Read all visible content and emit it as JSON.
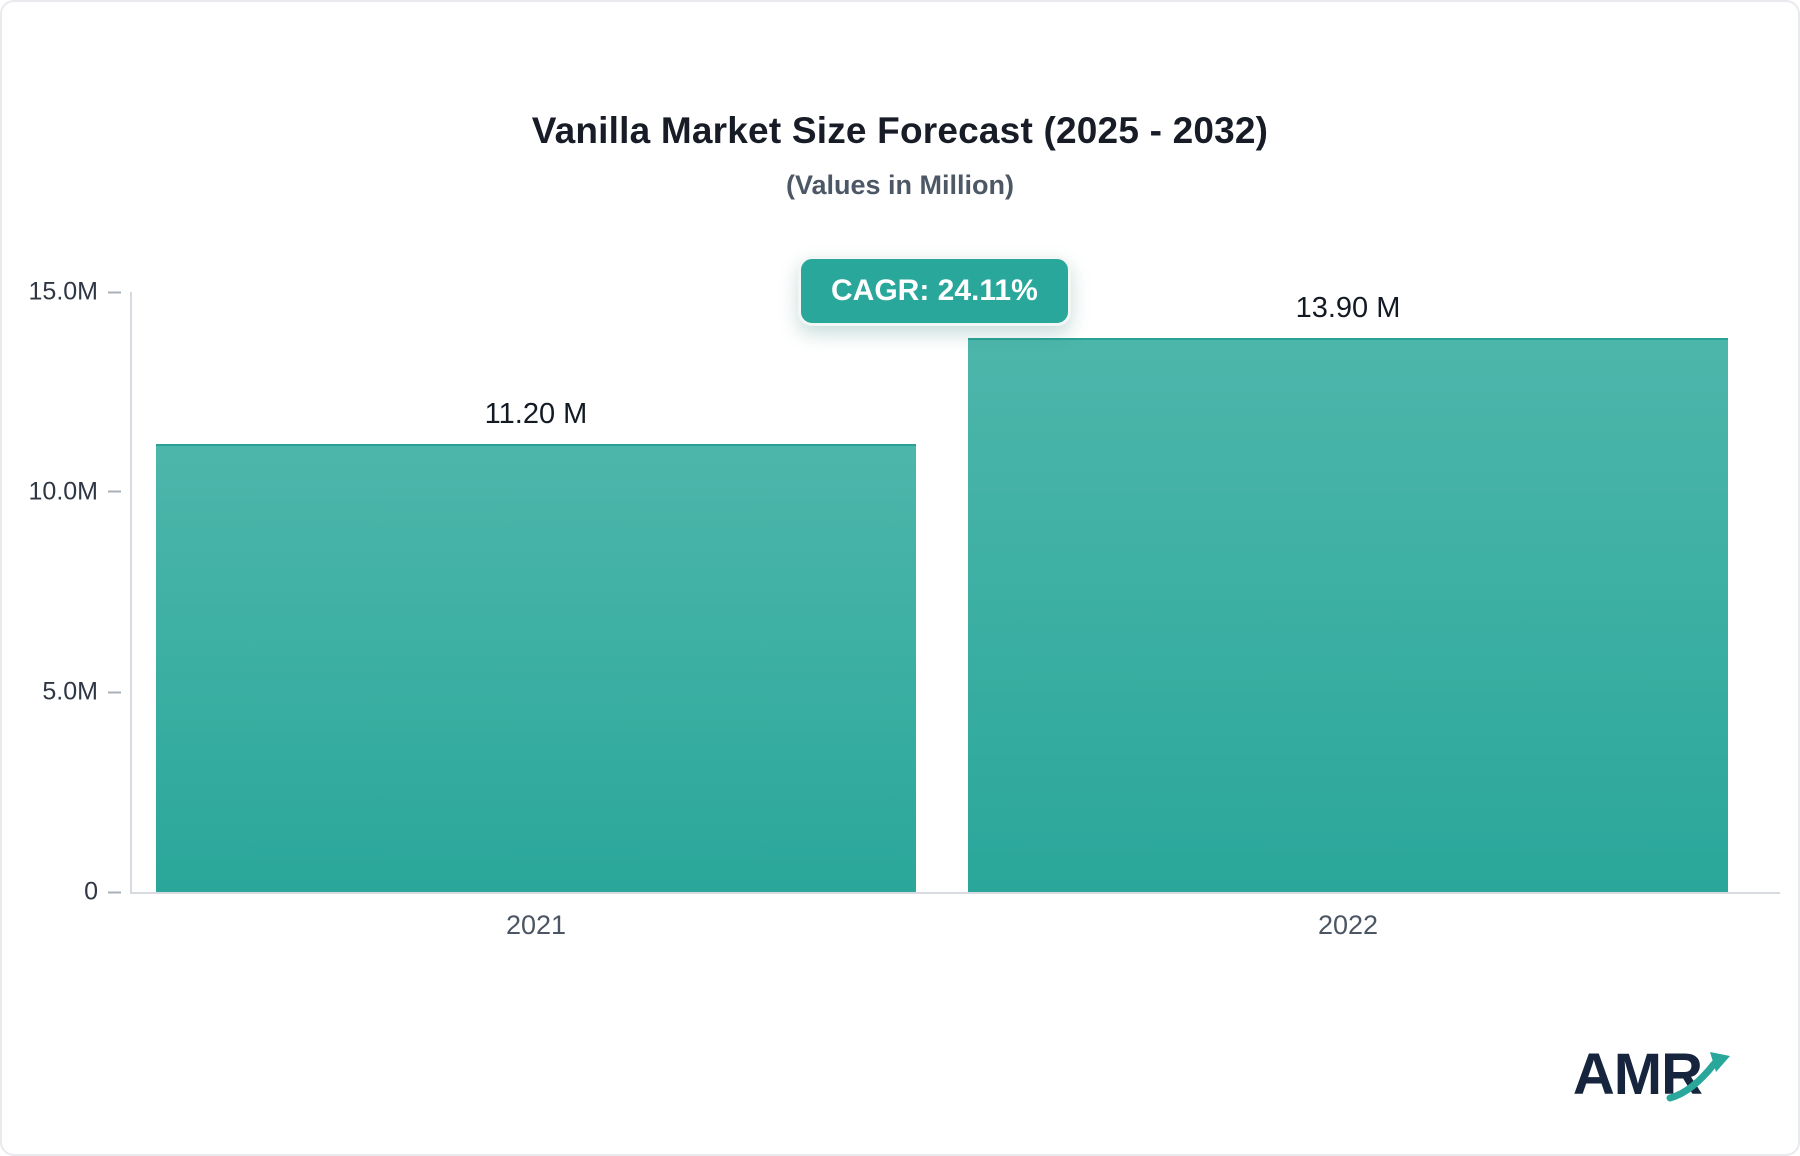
{
  "page": {
    "logo_text": "AMR"
  },
  "chart_data": {
    "type": "bar",
    "title": "Vanilla Market Size Forecast (2025 - 2032)",
    "subtitle": "(Values in Million)",
    "cagr_label": "CAGR: 24.11%",
    "categories": [
      "2021",
      "2022"
    ],
    "values": [
      11.2,
      13.9
    ],
    "value_labels": [
      "11.20 M",
      "13.90 M"
    ],
    "ylim": [
      0,
      15
    ],
    "yticks": [
      "15.0M",
      "10.0M",
      "5.0M",
      "0"
    ],
    "grid": false,
    "legend": false,
    "bar_colors": {
      "top": "#4db6ab",
      "bottom": "#2aa79a"
    },
    "accent_color": "#2aa79b"
  }
}
